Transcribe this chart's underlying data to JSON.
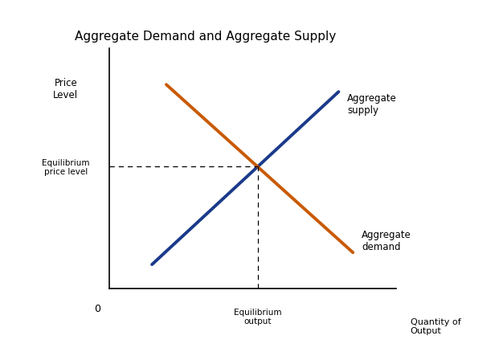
{
  "title": "Aggregate Demand and Aggregate Supply",
  "title_fontsize": 11,
  "bg_color": "#ffffff",
  "supply_color": "#1a3a8a",
  "demand_color": "#c85a00",
  "line_width": 2.8,
  "supply_label": "Aggregate\nsupply",
  "demand_label": "Aggregate\ndemand",
  "eq_price_label": "Equilibrium\nprice level",
  "eq_output_label": "Equilibrium\noutput",
  "zero_label": "0",
  "price_level_label": "Price\nLevel",
  "qty_output_label": "Quantity of\nOutput"
}
